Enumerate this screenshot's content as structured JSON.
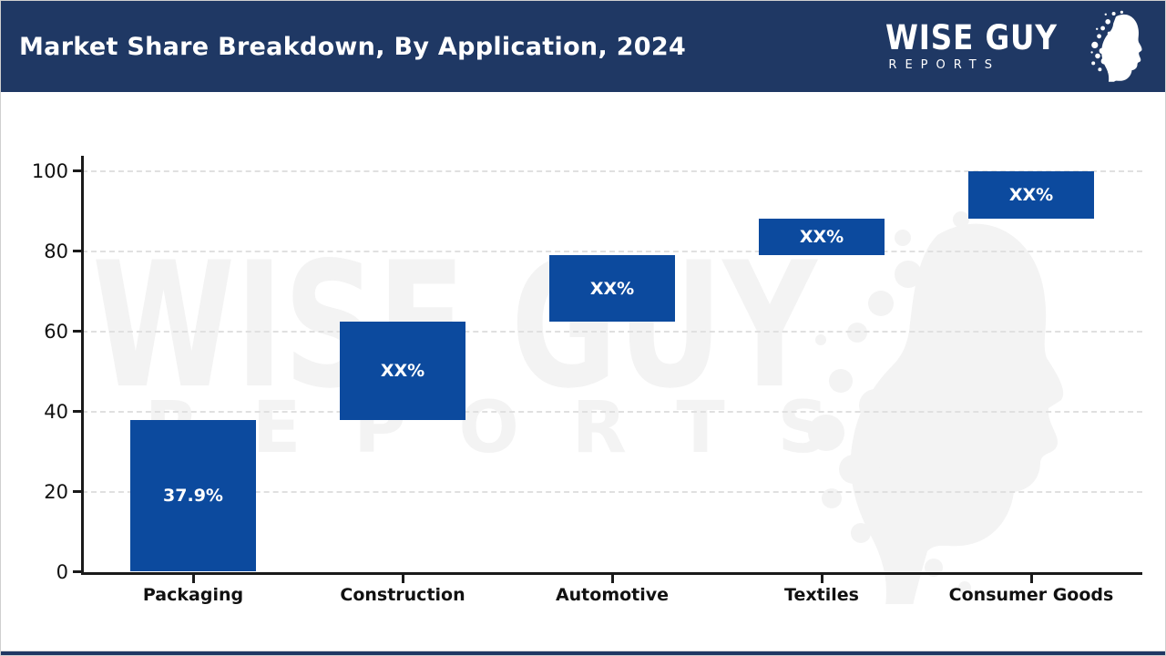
{
  "header": {
    "title": "Market Share Breakdown, By Application, 2024",
    "bg_color": "#1f3864",
    "logo": {
      "line1": "WISE GUY",
      "line2": "REPORTS"
    }
  },
  "watermark": {
    "line1": "WISE GUY",
    "line2": "REPORTS",
    "color": "#f3f3f3"
  },
  "chart_data": {
    "type": "bar",
    "subtype": "waterfall",
    "title": "Market Share Breakdown, By Application, 2024",
    "categories": [
      "Packaging",
      "Construction",
      "Automotive",
      "Textiles",
      "Consumer Goods"
    ],
    "series": [
      {
        "name": "Market Share",
        "segments": [
          {
            "start": 0,
            "end": 37.9,
            "label": "37.9%"
          },
          {
            "start": 37.9,
            "end": 62.3,
            "label": "XX%"
          },
          {
            "start": 62.3,
            "end": 78.9,
            "label": "XX%"
          },
          {
            "start": 78.9,
            "end": 88.0,
            "label": "XX%"
          },
          {
            "start": 88.0,
            "end": 100,
            "label": "XX%"
          }
        ]
      }
    ],
    "xlabel": "",
    "ylabel": "",
    "ylim": [
      0,
      100
    ],
    "yticks": [
      0,
      20,
      40,
      60,
      80,
      100
    ],
    "grid": "horizontal-dashed",
    "legend": "none",
    "bar_color": "#0c4a9e",
    "bar_label_color": "#ffffff",
    "axis_color": "#1a1a1a",
    "grid_color": "#e0e0e0"
  }
}
